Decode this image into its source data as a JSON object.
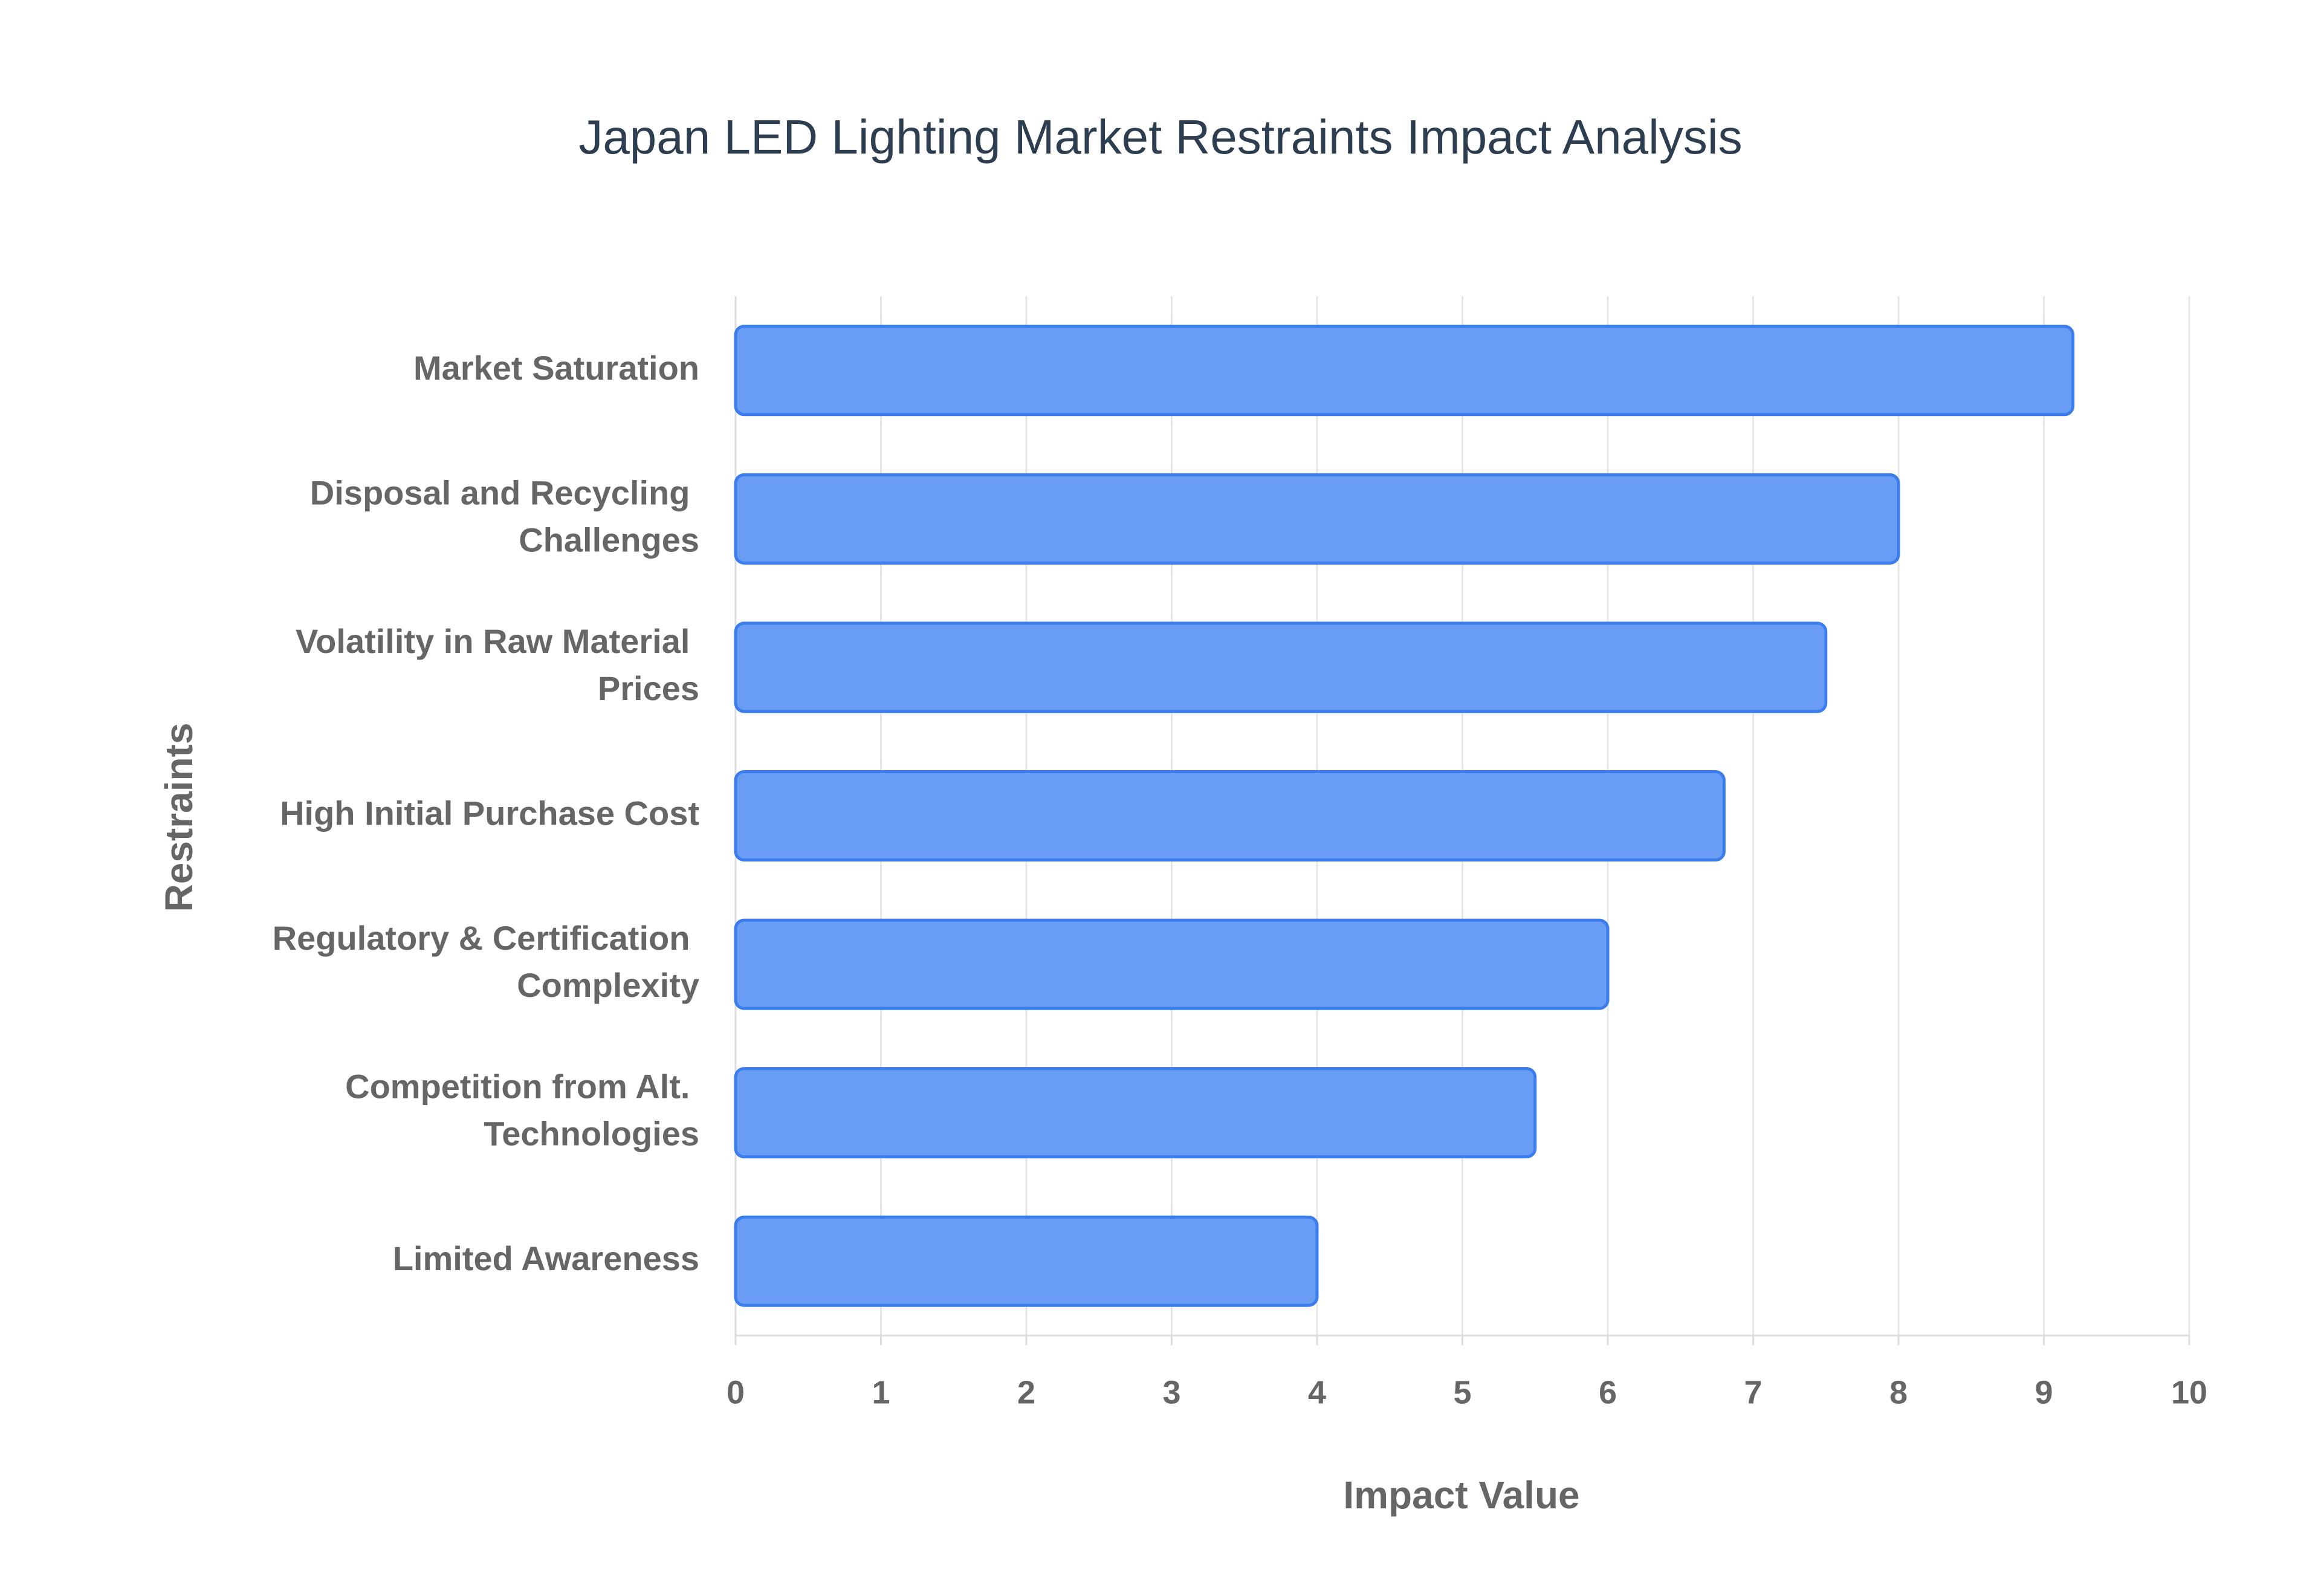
{
  "chart_data": {
    "type": "bar",
    "orientation": "horizontal",
    "title": "Japan LED Lighting Market Restraints Impact Analysis",
    "x_label": "Impact Value",
    "y_label": "Restraints",
    "categories": [
      "Market Saturation",
      "Disposal and Recycling Challenges",
      "Volatility in Raw Material Prices",
      "High Initial Purchase Cost",
      "Regulatory & Certification Complexity",
      "Competition from Alt. Technologies",
      "Limited Awareness"
    ],
    "values": [
      9.2,
      8.0,
      7.5,
      6.8,
      6.0,
      5.5,
      4.0
    ],
    "color": "#6399f5",
    "border_color": "#3b7ded",
    "xlim": [
      0,
      10
    ],
    "xticks": [
      0,
      1,
      2,
      3,
      4,
      5,
      6,
      7,
      8,
      9,
      10
    ],
    "grid": true
  }
}
